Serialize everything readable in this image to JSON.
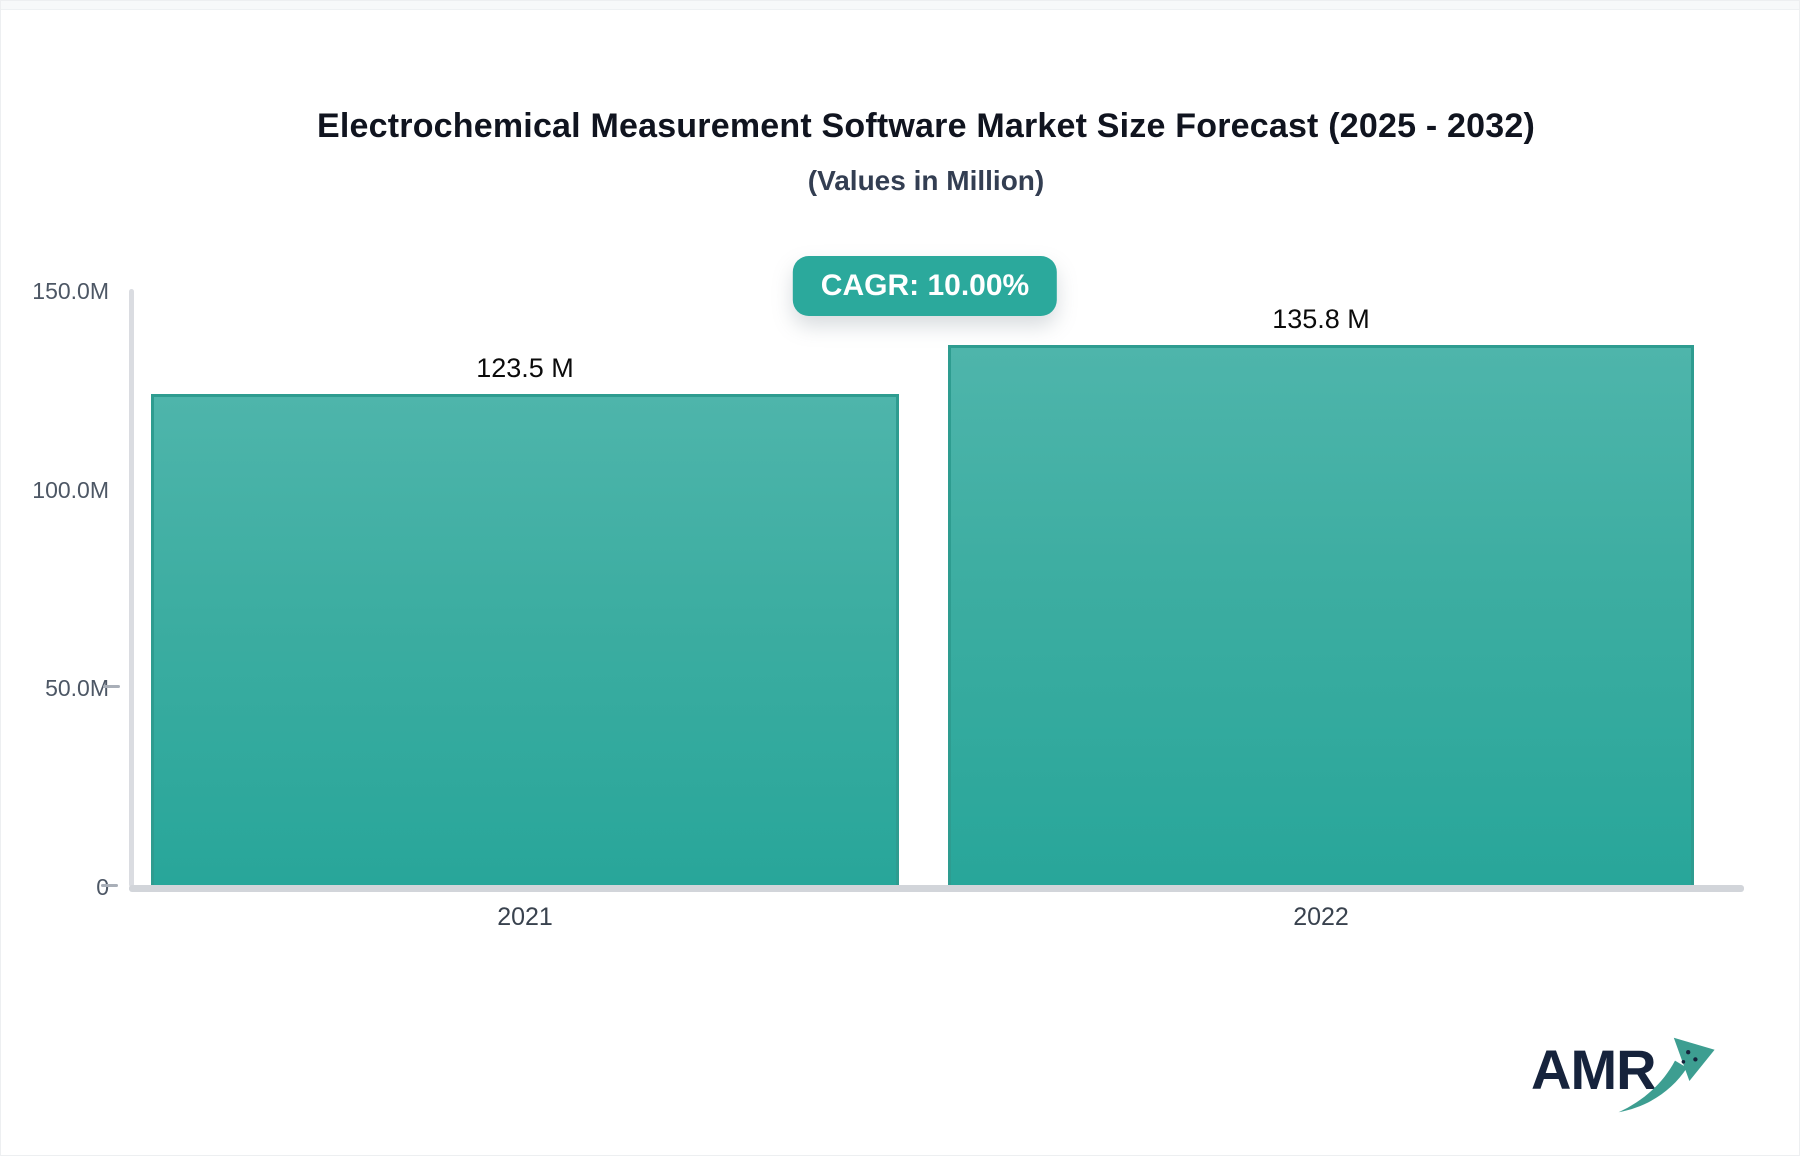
{
  "header": {
    "title": "Electrochemical Measurement Software Market Size Forecast (2025 - 2032)",
    "subtitle": "(Values in Million)"
  },
  "badge": {
    "label": "CAGR: 10.00%"
  },
  "logo": {
    "text": "AMR",
    "arrow_icon": "growth-arrow-icon"
  },
  "colors": {
    "bar_top": "#4eb5ab",
    "bar_bottom": "#28a69a",
    "bar_border": "#2e9c90",
    "badge_background": "#2ba99c",
    "badge_text": "#ffffff",
    "axis_line": "#dadce1",
    "baseline": "#d2d5da",
    "y_label": "#4d5765",
    "x_label": "#39424e",
    "value_label": "#0b0b0b",
    "title_text": "#10141f",
    "logo_navy": "#16233c",
    "logo_teal": "#3d9e91"
  },
  "chart_data": {
    "type": "bar",
    "title": "Electrochemical Measurement Software Market Size Forecast (2025 - 2032)",
    "subtitle": "(Values in Million)",
    "categories": [
      "2021",
      "2022"
    ],
    "values": [
      123.5,
      135.8
    ],
    "value_labels": [
      "123.5 M",
      "135.8 M"
    ],
    "y_ticks": [
      "150.0M",
      "100.0M",
      "50.0M",
      "0"
    ],
    "ylim": [
      0,
      150
    ],
    "ylabel": "",
    "xlabel": "",
    "grid": "off",
    "legend": "none",
    "cagr_label": "CAGR: 10.00%"
  }
}
